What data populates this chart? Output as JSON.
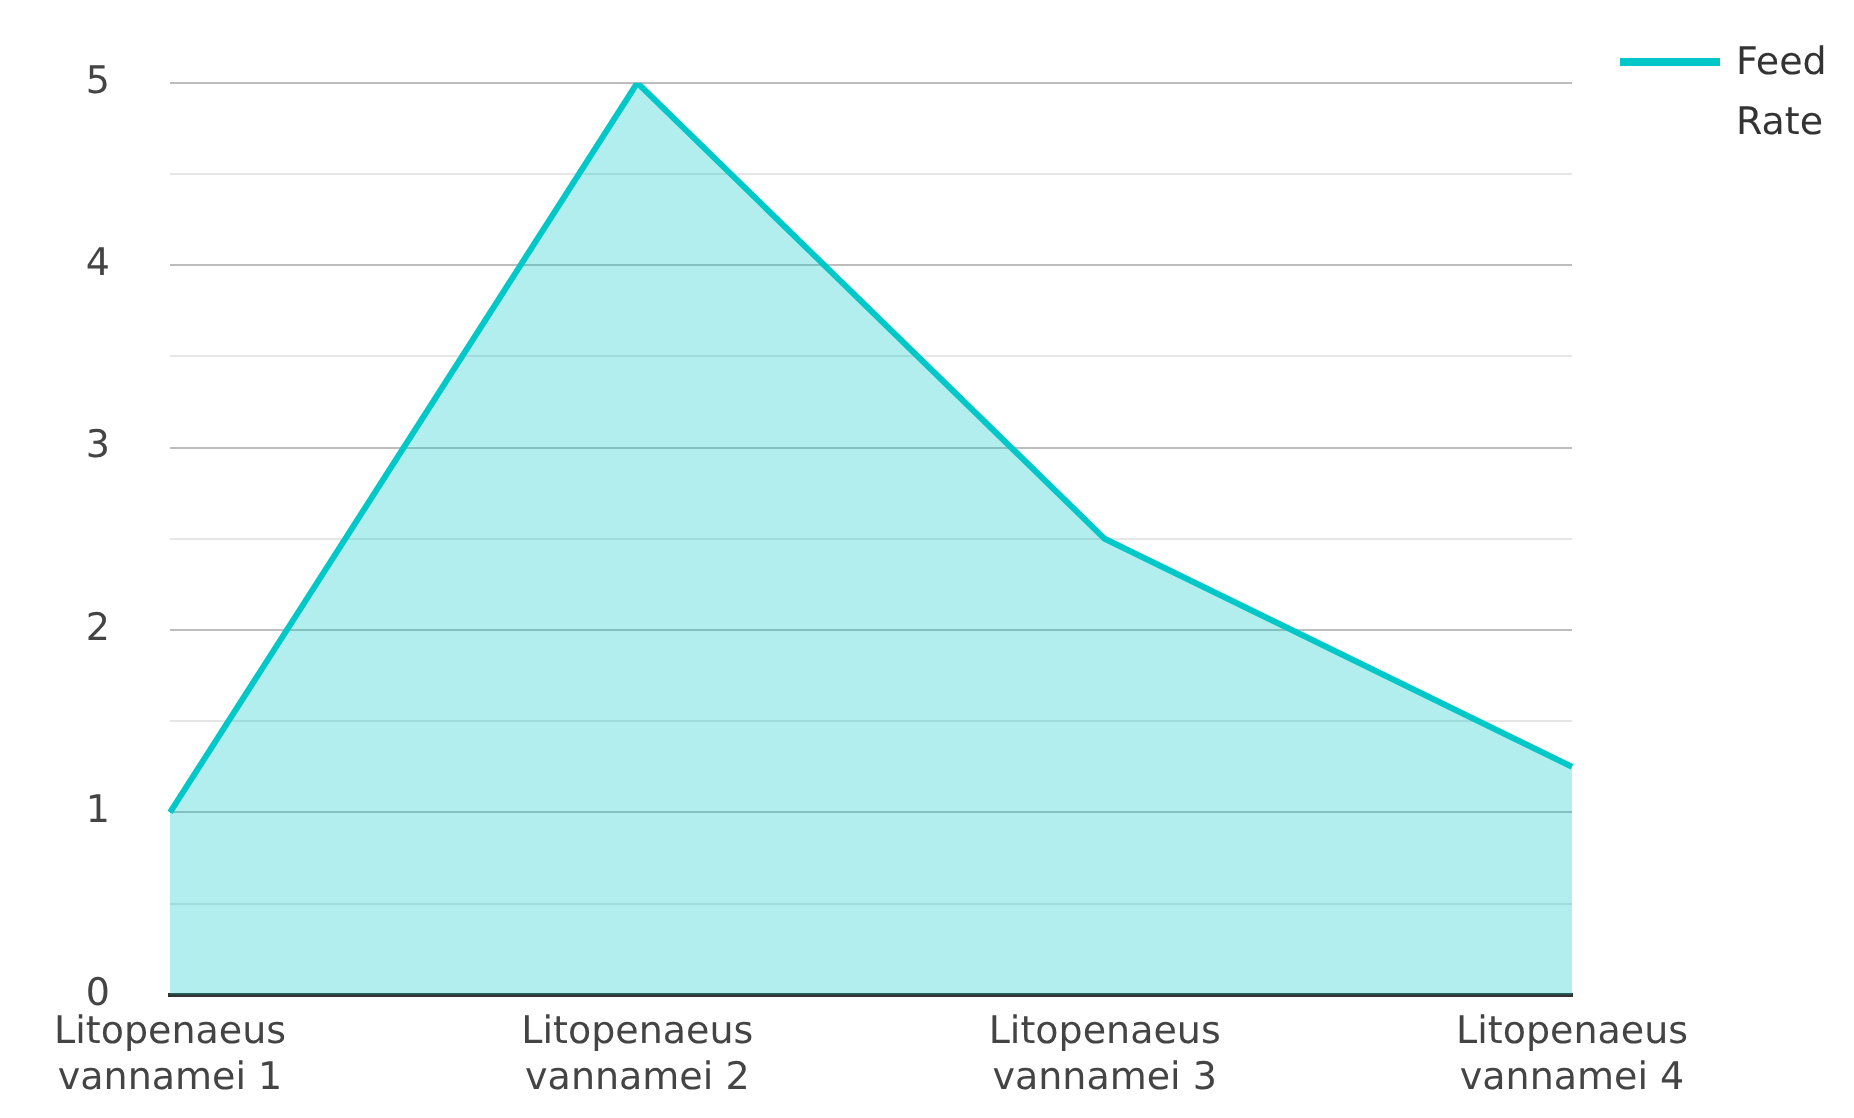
{
  "chart_data": {
    "type": "area",
    "categories": [
      "Litopenaeus vannamei 1",
      "Litopenaeus vannamei 2",
      "Litopenaeus vannamei 3",
      "Litopenaeus vannamei 4"
    ],
    "series": [
      {
        "name": "Feed Rate",
        "color": "#00c8c8",
        "values": [
          1,
          5,
          2.5,
          1.25
        ]
      }
    ],
    "ylim": [
      0,
      5
    ],
    "yticks": [
      0,
      {
        "value": 0.5,
        "label": null
      },
      1,
      {
        "value": 1.5,
        "label": null
      },
      2,
      {
        "value": 2.5,
        "label": null
      },
      3,
      {
        "value": 3.5,
        "label": null
      },
      4,
      {
        "value": 4.5,
        "label": null
      },
      5
    ],
    "grid": "y",
    "legend": "top right"
  }
}
